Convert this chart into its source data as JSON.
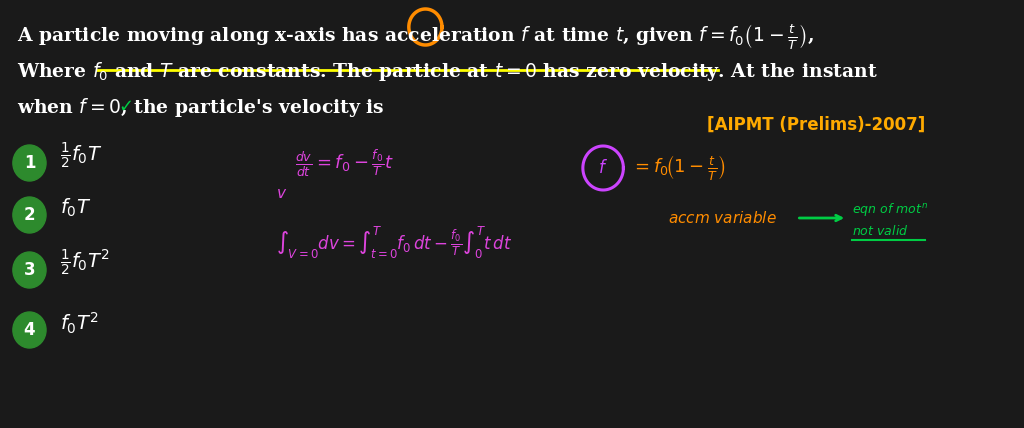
{
  "background_color": "#1a1a1a",
  "title_text": "A particle moving along x-axis has acceleration $f$ at time $t$, given $f = f_0\\left(1-\\frac{t}{T}\\right)$,\nWhere $f_0$ and $T$ are constants. The particle at $t = 0$ has zero velocity. At the instant\nwhen $f = 0$, the particle's velocity is",
  "source_text": "[AIPMT (Prelims)-2007]",
  "options": [
    "$\\frac{1}{2}f_0 T$",
    "$f_0 T$",
    "$\\frac{1}{2}f_0 T^2$",
    "$f_0 T^2$"
  ],
  "option_bg_color": "#2d8a2d",
  "option_text_color": "#ffffff",
  "title_color": "#ffffff",
  "source_color": "#ffaa00",
  "underline_color": "#ffff00",
  "handwriting_color_pink": "#ff69b4",
  "handwriting_color_orange": "#ff8c00",
  "handwriting_color_green": "#00cc44",
  "circle_color_orange": "#ff8c00",
  "circle_color_purple": "#cc44ff",
  "work_text_color": "#dd44dd",
  "acc_text_color": "#ff8c00",
  "eq_circle_color": "#cc44ff",
  "arrow_color": "#00cc44",
  "note_color": "#00cc44"
}
